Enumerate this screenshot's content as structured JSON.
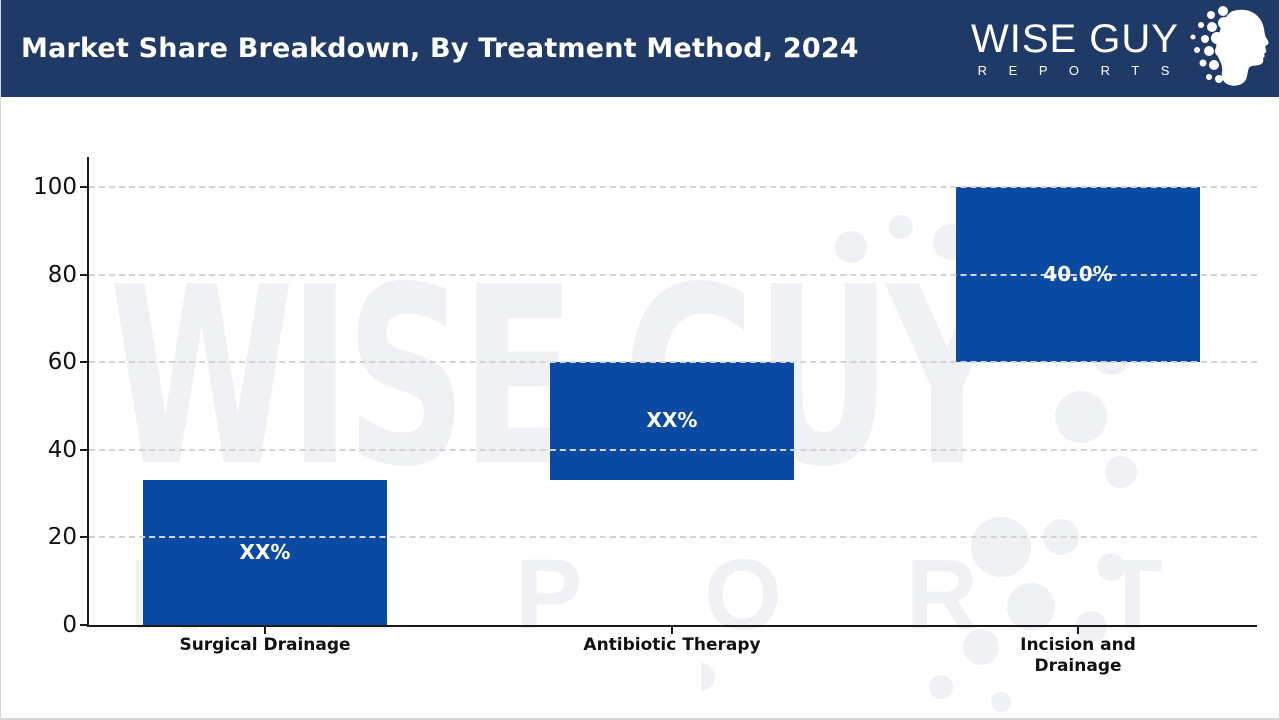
{
  "header": {
    "title": "Market Share Breakdown, By Treatment Method, 2024",
    "background_color": "#203a68"
  },
  "logo": {
    "brand_top": "WISE GUY",
    "brand_bottom": "R E P O R T S",
    "face_icon": "dotted-face-profile"
  },
  "watermark": {
    "line1": "WISE GUY",
    "line2": "R E P O R T S"
  },
  "chart_data": {
    "type": "bar",
    "subtype": "waterfall",
    "title": "Market Share Breakdown, By Treatment Method, 2024",
    "categories": [
      "Surgical Drainage",
      "Antibiotic Therapy",
      "Incision and\nDrainage"
    ],
    "segments": [
      {
        "category": "Surgical Drainage",
        "start": 0,
        "end": 33,
        "value": 33,
        "label": "XX%"
      },
      {
        "category": "Antibiotic Therapy",
        "start": 33,
        "end": 60,
        "value": 27,
        "label": "XX%"
      },
      {
        "category": "Incision and Drainage",
        "start": 60,
        "end": 100,
        "value": 40,
        "label": "40.0%"
      }
    ],
    "yticks": [
      0,
      20,
      40,
      60,
      80,
      100
    ],
    "ylim": [
      0,
      100
    ],
    "grid": "horizontal-dashed",
    "legend": "none",
    "bar_color": "#0b4aa2",
    "bar_label_color": "#ffffff",
    "grid_color": "#d4d4d4",
    "watermark_color": "#f0f1f4"
  }
}
